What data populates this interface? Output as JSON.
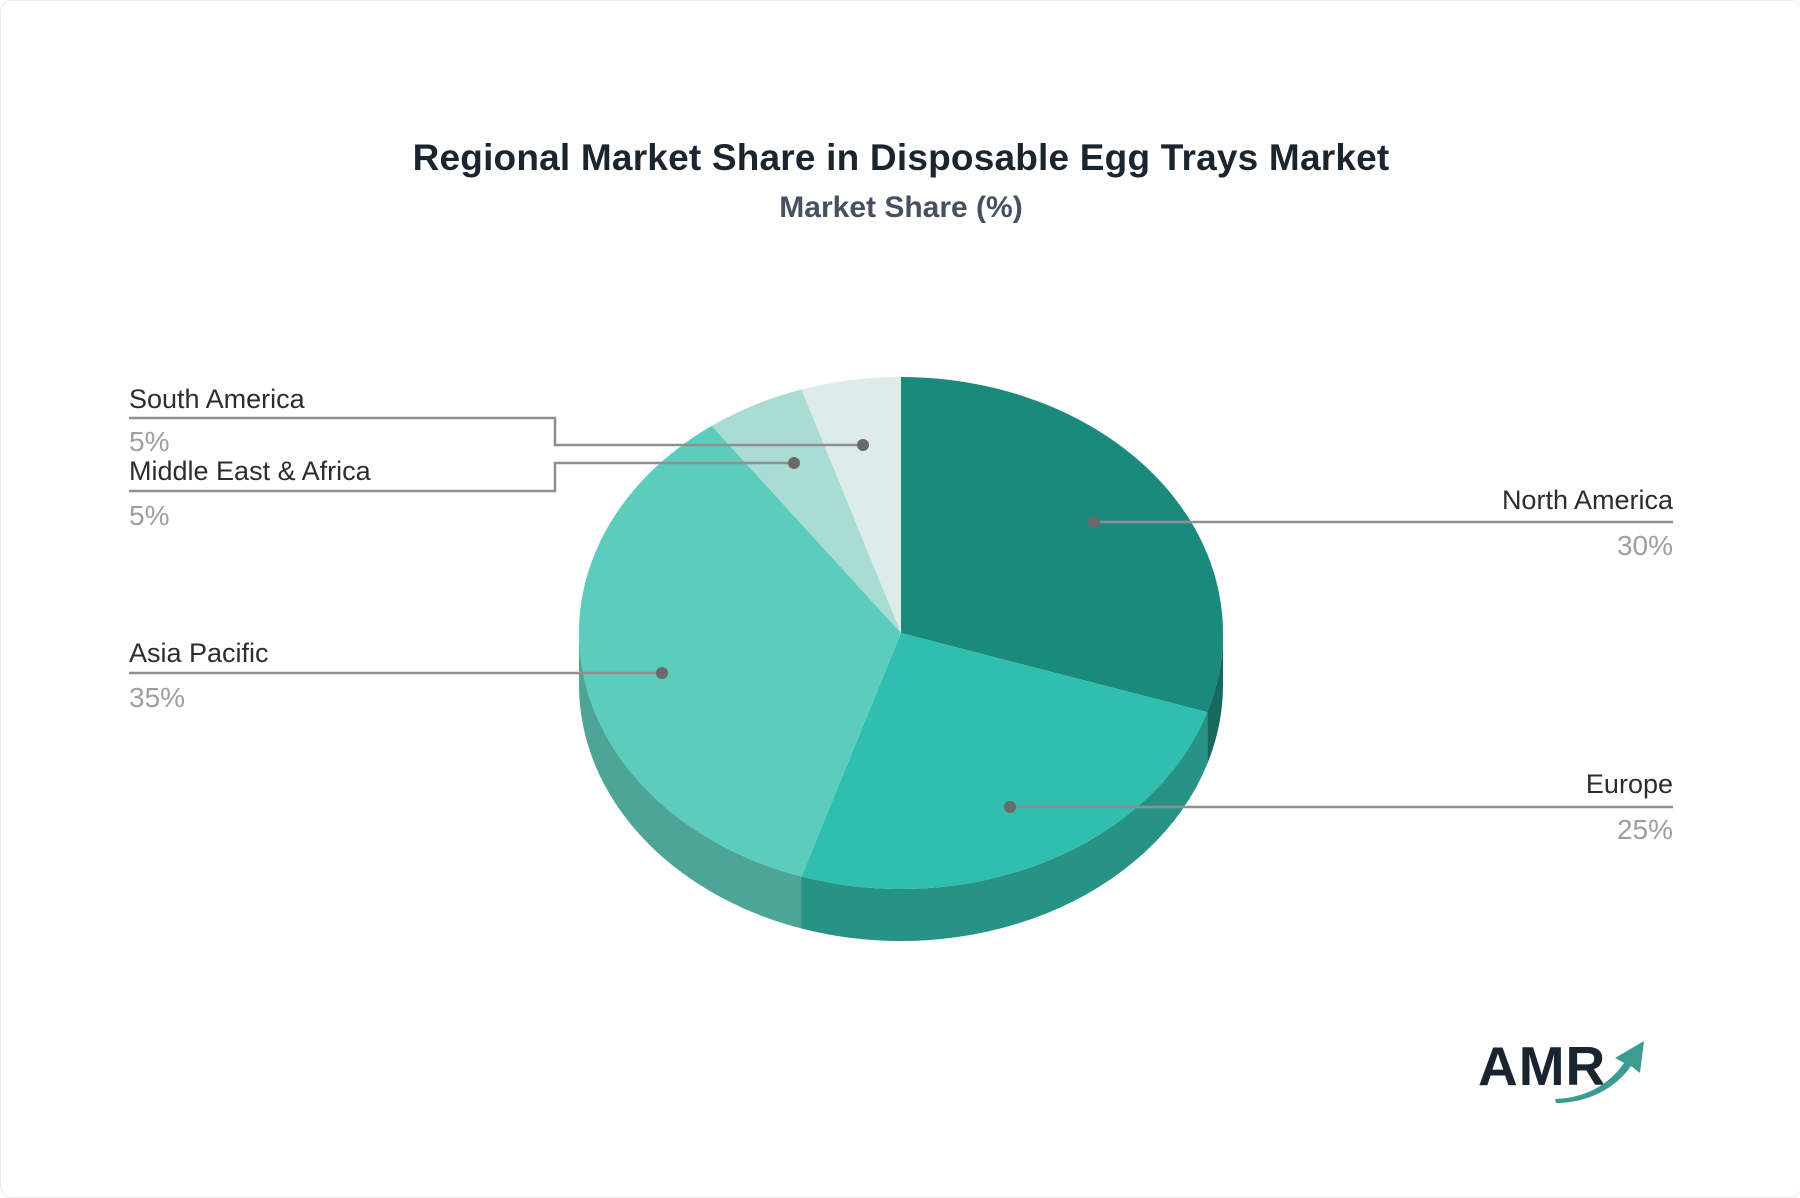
{
  "title": "Regional Market Share in Disposable Egg Trays Market",
  "subtitle": "Market Share (%)",
  "logo": {
    "text": "AMR",
    "arrow_color": "#3b9c92",
    "text_color": "#182430"
  },
  "style_colors": {
    "leader_line": "#8f8f8f",
    "leader_dot": "#6a6a6a",
    "label_text": "#2d2d2d",
    "value_text": "#9e9e9e",
    "title_text": "#1b2530",
    "subtitle_text": "#475063",
    "background": "#ffffff"
  },
  "chart_data": {
    "type": "pie",
    "title": "Regional Market Share in Disposable Egg Trays Market",
    "subtitle": "Market Share (%)",
    "unit": "%",
    "style": "3d",
    "start_angle": "12 o'clock",
    "direction": "clockwise",
    "legend_position": "none (leader-line labels)",
    "categories": [
      "North America",
      "Europe",
      "Asia Pacific",
      "Middle East & Africa",
      "South America"
    ],
    "values": [
      30,
      25,
      35,
      5,
      5
    ],
    "slices": [
      {
        "label": "North America",
        "value": 30,
        "display": "30%",
        "color": "#1a8a7c",
        "side_color": "#15695f",
        "label_side": "right"
      },
      {
        "label": "Europe",
        "value": 25,
        "display": "25%",
        "color": "#2ebfae",
        "side_color": "#279384",
        "label_side": "right"
      },
      {
        "label": "Asia Pacific",
        "value": 35,
        "display": "35%",
        "color": "#5cccbc",
        "side_color": "#4da596",
        "label_side": "left"
      },
      {
        "label": "Middle East & Africa",
        "value": 5,
        "display": "5%",
        "color": "#a9ddd3",
        "side_color": "#8ab8ae",
        "label_side": "left"
      },
      {
        "label": "South America",
        "value": 5,
        "display": "5%",
        "color": "#dcece8",
        "side_color": "#b6c8c4",
        "label_side": "left"
      }
    ]
  }
}
